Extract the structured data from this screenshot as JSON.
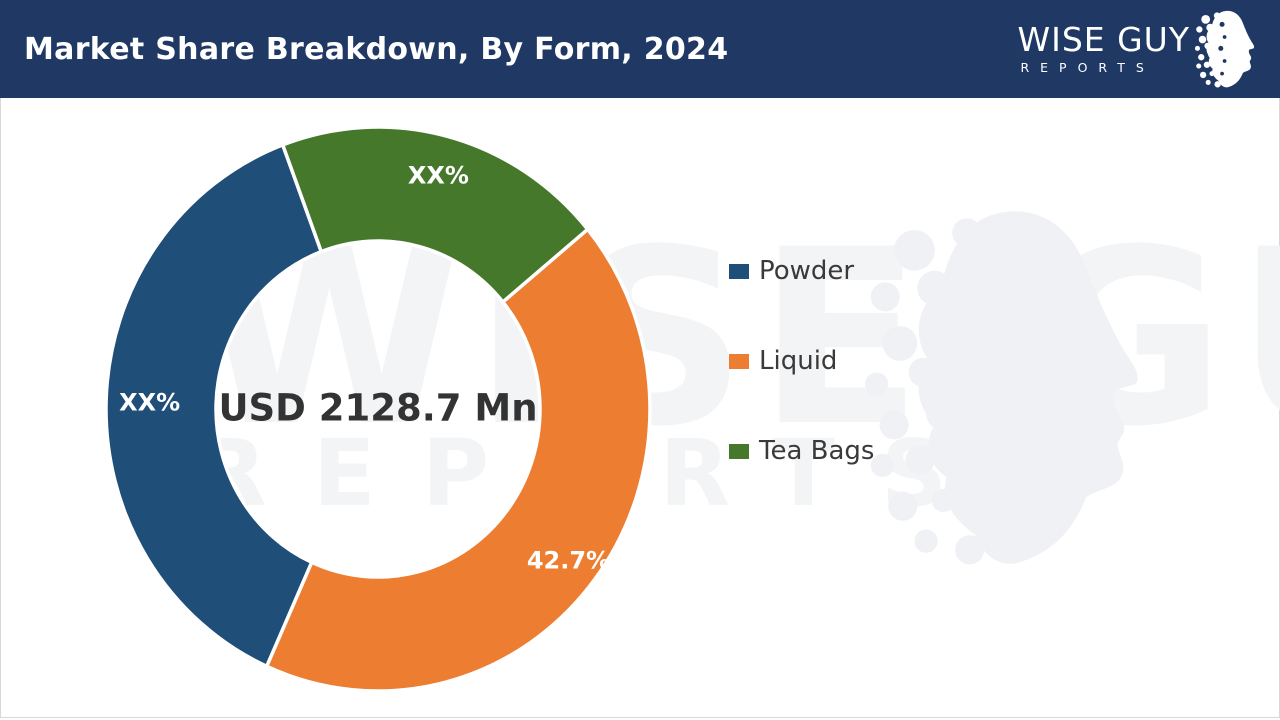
{
  "header": {
    "title": "Market Share Breakdown, By Form, 2024",
    "logo": {
      "line1": "WISE GUY",
      "line2": "REPORTS"
    }
  },
  "watermark": {
    "line1": "WISE GUY",
    "line2": "REPORTS"
  },
  "chart_data": {
    "type": "pie",
    "donut": true,
    "title": "Market Share Breakdown, By Form, 2024",
    "center_label": "USD 2128.7 Mn",
    "categories": [
      "Powder",
      "Liquid",
      "Tea Bags"
    ],
    "values": [
      37.6,
      42.7,
      19.7
    ],
    "labels": [
      "XX%",
      "42.7%",
      "XX%"
    ],
    "colors": [
      "#1F4E79",
      "#ED7D31",
      "#45782B"
    ],
    "legend_position": "right",
    "background_color": "#ffffff",
    "header_color": "#1F3864"
  }
}
